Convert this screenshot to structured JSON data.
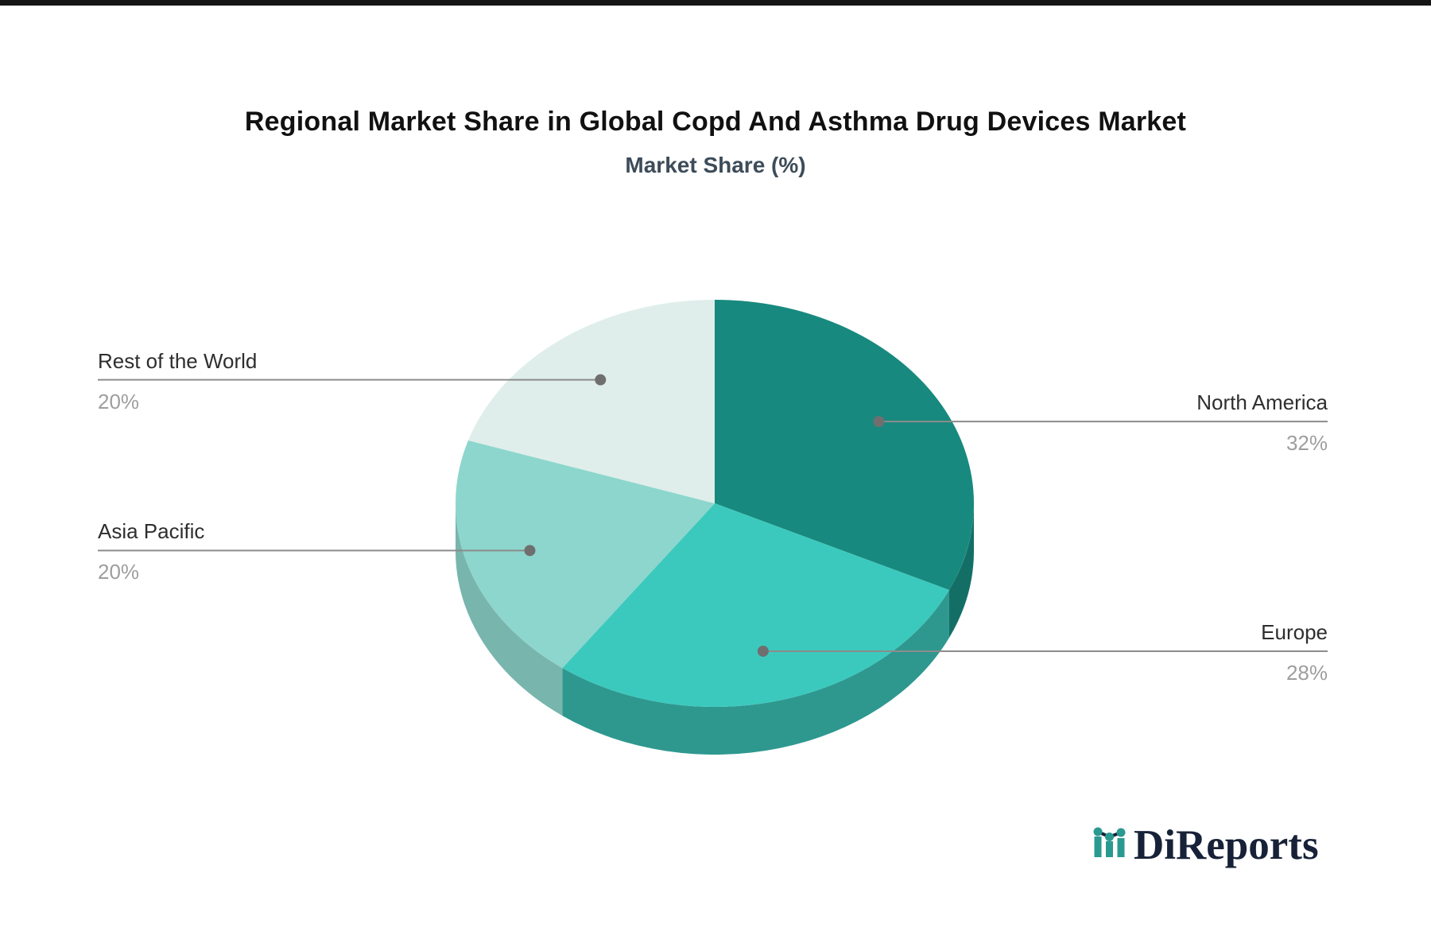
{
  "page": {
    "background": "#ffffff",
    "top_strip_color": "#151515"
  },
  "chart_data": {
    "type": "pie",
    "style": "3d",
    "title": "Regional Market Share in Global Copd And Asthma Drug Devices Market",
    "subtitle": "Market Share (%)",
    "unit": "%",
    "direction": "clockwise",
    "start_angle_deg": 0,
    "legend_position": "none",
    "leader_line_color": "#8c8c8c",
    "dot_color": "#6f6f6f",
    "slices": [
      {
        "label": "North America",
        "value": 32,
        "pct_text": "32%",
        "color": "#18897e",
        "side_color": "#136f66"
      },
      {
        "label": "Europe",
        "value": 28,
        "pct_text": "28%",
        "color": "#3cc9bd",
        "side_color": "#2e988f"
      },
      {
        "label": "Asia Pacific",
        "value": 20,
        "pct_text": "20%",
        "color": "#8dd6cd",
        "side_color": "#78b5ad"
      },
      {
        "label": "Rest of the World",
        "value": 20,
        "pct_text": "20%",
        "color": "#dfeeea",
        "side_color": "#bcd6d1"
      }
    ]
  },
  "branding": {
    "logo_text": "DiReports",
    "logo_text_color": "#172238",
    "logo_icon_color": "#2a9a90"
  }
}
